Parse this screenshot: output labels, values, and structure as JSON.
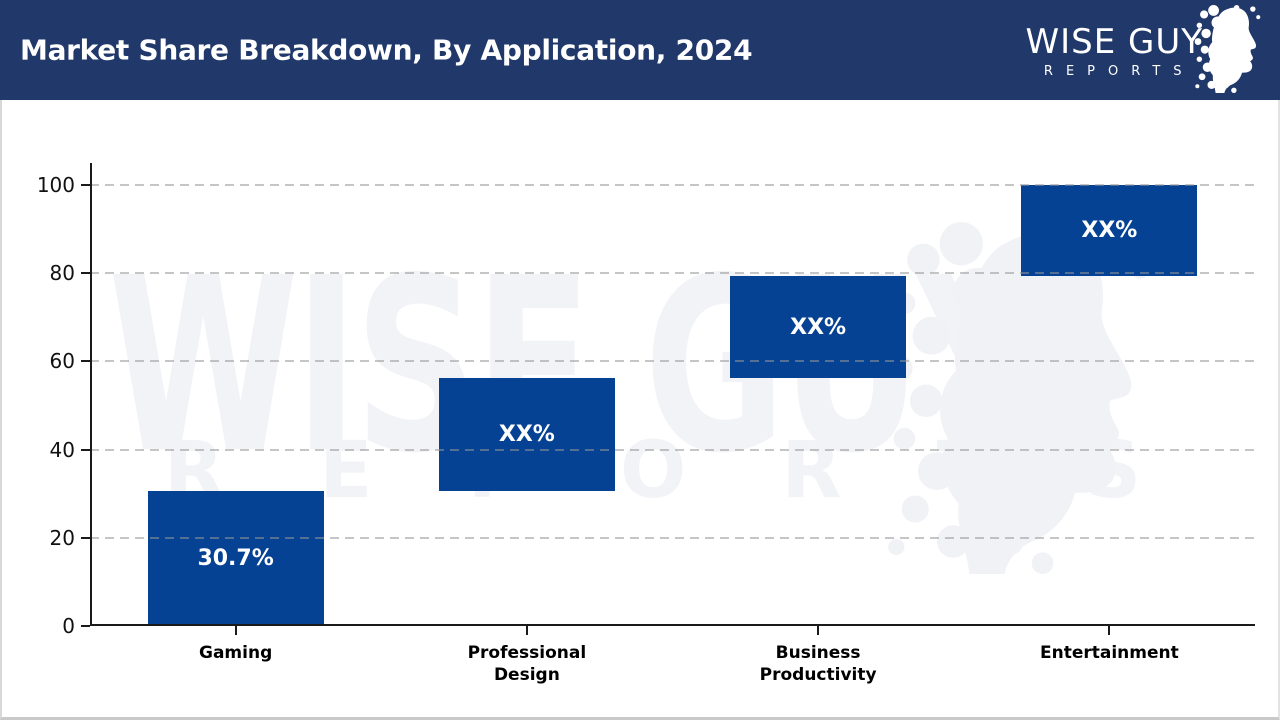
{
  "header": {
    "title": "Market Share Breakdown, By Application, 2024",
    "logo_line1": "WISE GUY",
    "logo_line2": "REPORTS"
  },
  "watermark": {
    "line1": "WISE GUY",
    "line2": "R E P O R T S"
  },
  "colors": {
    "header_bg": "#21386b",
    "bar_blue": "#054294",
    "axis": "#1a1a1a",
    "gridline": "rgba(150,150,150,0.55)",
    "watermark_gray": "#f2f3f7"
  },
  "chart_data": {
    "type": "bar",
    "variant": "waterfall",
    "title": "Market Share Breakdown, By Application, 2024",
    "xlabel": "",
    "ylabel": "",
    "ylim": [
      0,
      105
    ],
    "yticks": [
      0,
      20,
      40,
      60,
      80,
      100
    ],
    "grid": "horizontal dashed, drawn over bars",
    "legend": "none",
    "bar_color": "#054294",
    "categories": [
      "Gaming",
      "Professional Design",
      "Business Productivity",
      "Entertainment"
    ],
    "bars": [
      {
        "category": "Gaming",
        "base": 0,
        "top": 30.7,
        "label": "30.7%"
      },
      {
        "category": "Professional\nDesign",
        "base": 30.7,
        "top": 56.3,
        "label": "XX%"
      },
      {
        "category": "Business\nProductivity",
        "base": 56.3,
        "top": 79.3,
        "label": "XX%"
      },
      {
        "category": "Entertainment",
        "base": 79.3,
        "top": 100,
        "label": "XX%"
      }
    ]
  }
}
